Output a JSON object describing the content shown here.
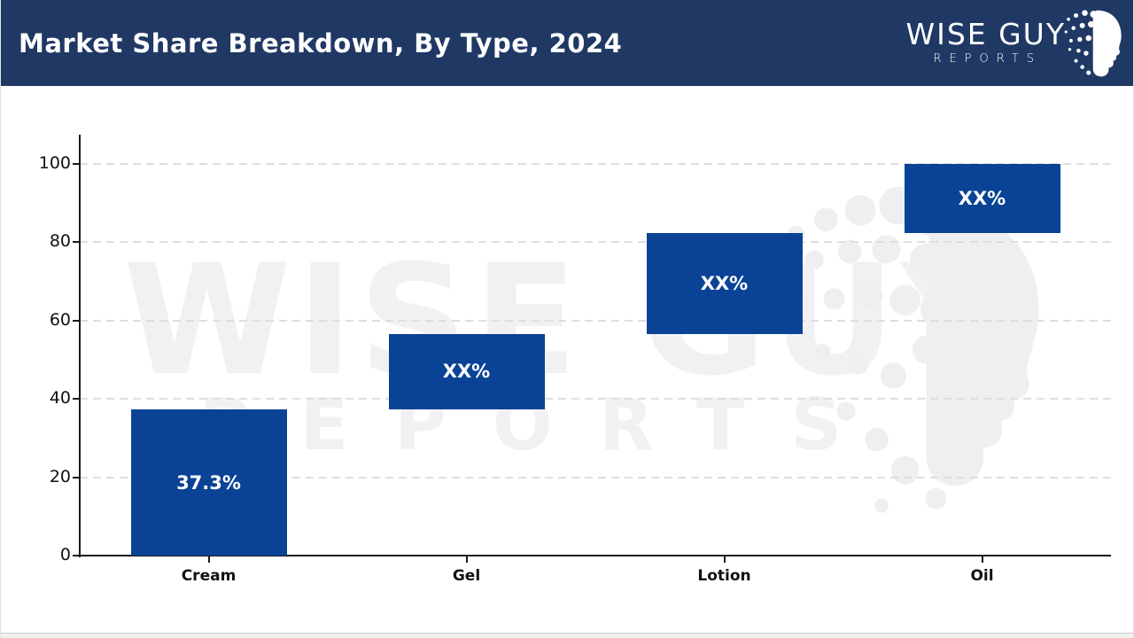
{
  "header": {
    "bg": "#203864",
    "title": "Market Share Breakdown, By Type, 2024",
    "logo_line1": "WISE GUY",
    "logo_line2": "REPORTS"
  },
  "watermark": {
    "line1": "WISE GUY",
    "line2": "REPORTS"
  },
  "chart_data": {
    "type": "bar",
    "variant": "waterfall",
    "title": "Market Share Breakdown, By Type, 2024",
    "categories": [
      "Cream",
      "Gel",
      "Lotion",
      "Oil"
    ],
    "segments": [
      {
        "category": "Cream",
        "start": 0,
        "end": 37.3,
        "label": "37.3%"
      },
      {
        "category": "Gel",
        "start": 37.3,
        "end": 56.6,
        "label": "XX%"
      },
      {
        "category": "Lotion",
        "start": 56.6,
        "end": 82.4,
        "label": "XX%"
      },
      {
        "category": "Oil",
        "start": 82.4,
        "end": 100,
        "label": "XX%"
      }
    ],
    "yticks": [
      0,
      20,
      40,
      60,
      80,
      100
    ],
    "ylim": [
      0,
      107.5
    ],
    "xlabel": "",
    "ylabel": "",
    "grid": "horizontal-dashed",
    "legend": "none",
    "bar_color": "#0a4396",
    "bar_label_color": "#ffffff"
  }
}
